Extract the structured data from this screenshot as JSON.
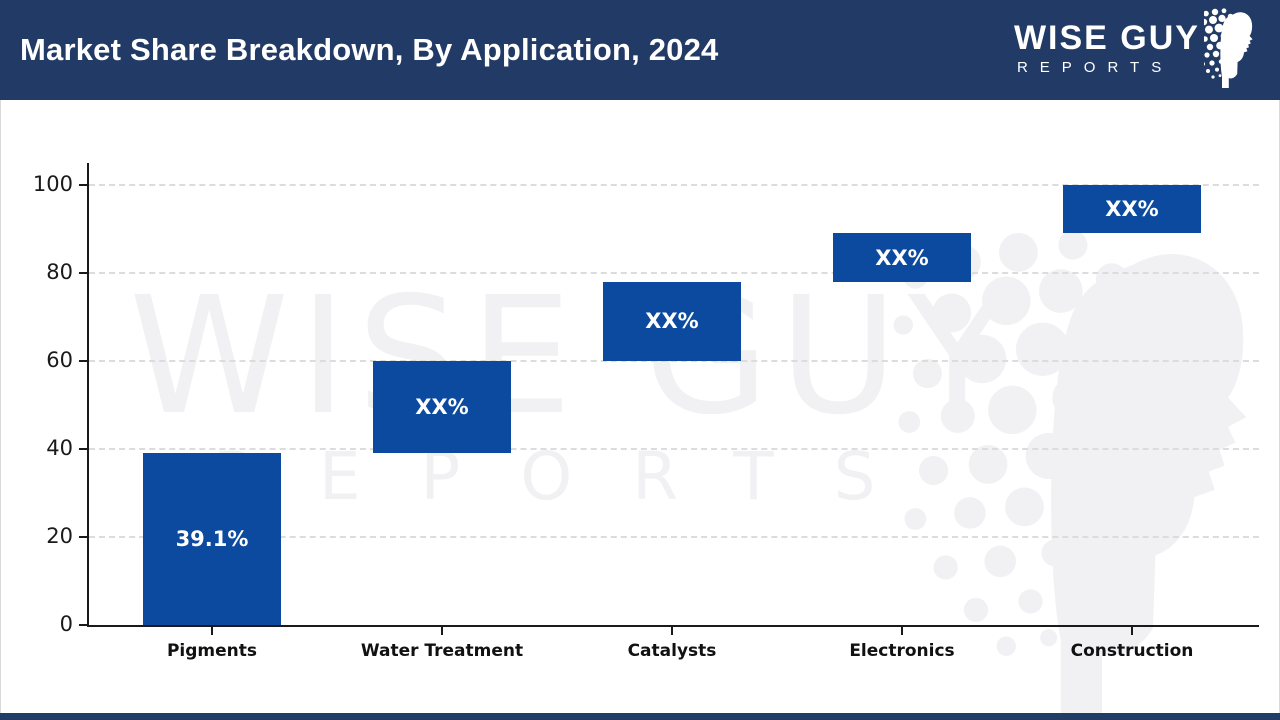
{
  "header": {
    "title": "Market Share Breakdown, By Application, 2024",
    "logo": {
      "line1": "WISE GUY",
      "line2": "REPORTS"
    }
  },
  "watermark": {
    "line1": "WISE GUY",
    "line2": "REPORTS"
  },
  "icons": {
    "logo_head": "dotted-head-profile-icon"
  },
  "colors": {
    "header_bg": "#223A66",
    "footer_bg": "#223A66",
    "bar": "#0B4A9E",
    "bar_label": "#FFFFFF",
    "grid": "#DCDCDC",
    "axis": "#1A1A1A",
    "x_label": "#111111",
    "watermark": "#F1F1F4"
  },
  "chart_data": {
    "type": "bar",
    "subtype": "waterfall",
    "title": "Market Share Breakdown, By Application, 2024",
    "xlabel": "",
    "ylabel": "",
    "ylim": [
      0,
      105
    ],
    "y_ticks": [
      0,
      20,
      40,
      60,
      80,
      100
    ],
    "grid": "dashed-horizontal",
    "legend": "none",
    "categories": [
      "Pigments",
      "Water Treatment",
      "Catalysts",
      "Electronics",
      "Construction"
    ],
    "segments": [
      {
        "category": "Pigments",
        "start": 0,
        "end": 39.1,
        "label": "39.1%"
      },
      {
        "category": "Water Treatment",
        "start": 39.1,
        "end": 60,
        "label": "XX%"
      },
      {
        "category": "Catalysts",
        "start": 60,
        "end": 78,
        "label": "XX%"
      },
      {
        "category": "Electronics",
        "start": 78,
        "end": 89,
        "label": "XX%"
      },
      {
        "category": "Construction",
        "start": 89,
        "end": 100,
        "label": "XX%"
      }
    ]
  }
}
